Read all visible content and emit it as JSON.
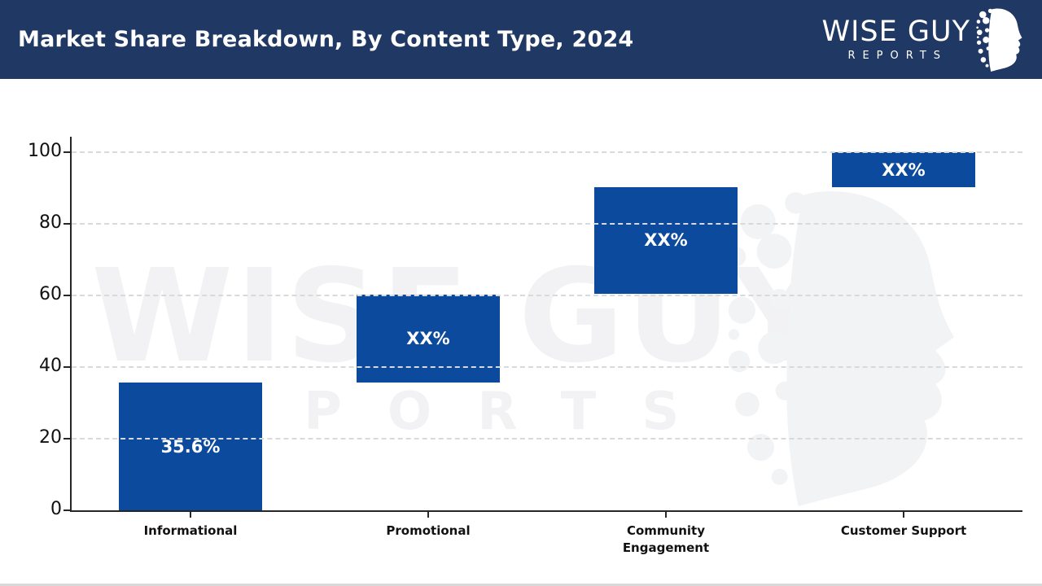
{
  "header": {
    "title": "Market Share Breakdown, By Content Type, 2024",
    "background_color": "#1f3864",
    "brand": {
      "name": "WISE GUY",
      "subtitle": "REPORTS"
    }
  },
  "watermark": {
    "line1": "WISE GUY",
    "line2": "REPORTS"
  },
  "chart_data": {
    "type": "bar",
    "subtype": "waterfall",
    "title": "Market Share Breakdown, By Content Type, 2024",
    "categories": [
      "Informational",
      "Promotional",
      "Community Engagement",
      "Customer Support"
    ],
    "segments": [
      {
        "category": "Informational",
        "start": 0,
        "end": 35.6,
        "value_label": "35.6%"
      },
      {
        "category": "Promotional",
        "start": 35.6,
        "end": 60.2,
        "value_label": "XX%"
      },
      {
        "category": "Community Engagement",
        "start": 60.5,
        "end": 90.2,
        "value_label": "XX%"
      },
      {
        "category": "Customer Support",
        "start": 90.2,
        "end": 100,
        "value_label": "XX%"
      }
    ],
    "ylim": [
      0,
      100
    ],
    "yticks": [
      0,
      20,
      40,
      60,
      80,
      100
    ],
    "grid": "horizontal-dashed",
    "legend": "none",
    "bar_color": "#0b4a9d",
    "bar_label_color": "#ffffff",
    "axis_color": "#262626",
    "grid_color": "#d9d9d9"
  }
}
